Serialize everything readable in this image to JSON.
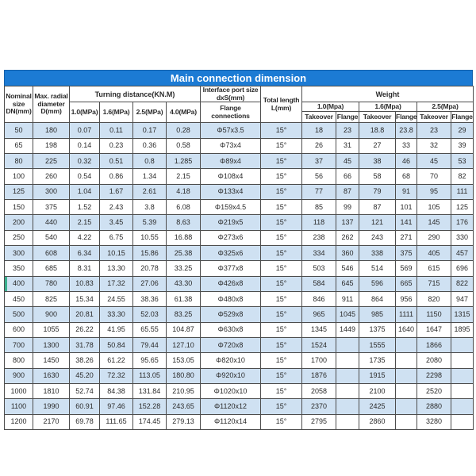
{
  "title_bar": {
    "label": "Main connection dimension"
  },
  "colors": {
    "accent": "#1c7bd4",
    "stripe": "#cfe1f2",
    "border": "#4d4d4d",
    "selection_mark": "#3cb08e",
    "title_text": "#ffffff"
  },
  "table": {
    "header": {
      "nominal_size": "Nominal size DN(mm)",
      "max_radial": "Max. radial diameter D(mm)",
      "turning_distance": "Turning distance(KN.M)",
      "turning_cols": [
        "1.0(MPa)",
        "1.6(MPa)",
        "2.5(MPa)",
        "4.0(MPa)"
      ],
      "interface_port": "Interface port size dxS(mm)",
      "flange_connections": "Flange connections",
      "total_length": "Total length L(mm)",
      "weight": "Weight",
      "weight_groups": [
        "1.0(Mpa)",
        "1.6(Mpa)",
        "2.5(Mpa)"
      ],
      "takeover": "Takeover",
      "flange": "Flange"
    },
    "highlight_row_index": 10,
    "rows": [
      [
        "50",
        "180",
        "0.07",
        "0.11",
        "0.17",
        "0.28",
        "Φ57x3.5",
        "15°",
        "18",
        "23",
        "18.8",
        "23.8",
        "23",
        "29"
      ],
      [
        "65",
        "198",
        "0.14",
        "0.23",
        "0.36",
        "0.58",
        "Φ73x4",
        "15°",
        "26",
        "31",
        "27",
        "33",
        "32",
        "39"
      ],
      [
        "80",
        "225",
        "0.32",
        "0.51",
        "0.8",
        "1.285",
        "Φ89x4",
        "15°",
        "37",
        "45",
        "38",
        "46",
        "45",
        "53"
      ],
      [
        "100",
        "260",
        "0.54",
        "0.86",
        "1.34",
        "2.15",
        "Φ108x4",
        "15°",
        "56",
        "66",
        "58",
        "68",
        "70",
        "82"
      ],
      [
        "125",
        "300",
        "1.04",
        "1.67",
        "2.61",
        "4.18",
        "Φ133x4",
        "15°",
        "77",
        "87",
        "79",
        "91",
        "95",
        "111"
      ],
      [
        "150",
        "375",
        "1.52",
        "2.43",
        "3.8",
        "6.08",
        "Φ159x4.5",
        "15°",
        "85",
        "99",
        "87",
        "101",
        "105",
        "125"
      ],
      [
        "200",
        "440",
        "2.15",
        "3.45",
        "5.39",
        "8.63",
        "Φ219x5",
        "15°",
        "118",
        "137",
        "121",
        "141",
        "145",
        "176"
      ],
      [
        "250",
        "540",
        "4.22",
        "6.75",
        "10.55",
        "16.88",
        "Φ273x6",
        "15°",
        "238",
        "262",
        "243",
        "271",
        "290",
        "330"
      ],
      [
        "300",
        "608",
        "6.34",
        "10.15",
        "15.86",
        "25.38",
        "Φ325x6",
        "15°",
        "334",
        "360",
        "338",
        "375",
        "405",
        "457"
      ],
      [
        "350",
        "685",
        "8.31",
        "13.30",
        "20.78",
        "33.25",
        "Φ377x8",
        "15°",
        "503",
        "546",
        "514",
        "569",
        "615",
        "696"
      ],
      [
        "400",
        "780",
        "10.83",
        "17.32",
        "27.06",
        "43.30",
        "Φ426x8",
        "15°",
        "584",
        "645",
        "596",
        "665",
        "715",
        "822"
      ],
      [
        "450",
        "825",
        "15.34",
        "24.55",
        "38.36",
        "61.38",
        "Φ480x8",
        "15°",
        "846",
        "911",
        "864",
        "956",
        "820",
        "947"
      ],
      [
        "500",
        "900",
        "20.81",
        "33.30",
        "52.03",
        "83.25",
        "Φ529x8",
        "15°",
        "965",
        "1045",
        "985",
        "1111",
        "1150",
        "1315"
      ],
      [
        "600",
        "1055",
        "26.22",
        "41.95",
        "65.55",
        "104.87",
        "Φ630x8",
        "15°",
        "1345",
        "1449",
        "1375",
        "1640",
        "1647",
        "1895"
      ],
      [
        "700",
        "1300",
        "31.78",
        "50.84",
        "79.44",
        "127.10",
        "Φ720x8",
        "15°",
        "1524",
        "",
        "1555",
        "",
        "1866",
        ""
      ],
      [
        "800",
        "1450",
        "38.26",
        "61.22",
        "95.65",
        "153.05",
        "Φ820x10",
        "15°",
        "1700",
        "",
        "1735",
        "",
        "2080",
        ""
      ],
      [
        "900",
        "1630",
        "45.20",
        "72.32",
        "113.05",
        "180.80",
        "Φ920x10",
        "15°",
        "1876",
        "",
        "1915",
        "",
        "2298",
        ""
      ],
      [
        "1000",
        "1810",
        "52.74",
        "84.38",
        "131.84",
        "210.95",
        "Φ1020x10",
        "15°",
        "2058",
        "",
        "2100",
        "",
        "2520",
        ""
      ],
      [
        "1100",
        "1990",
        "60.91",
        "97.46",
        "152.28",
        "243.65",
        "Φ1120x12",
        "15°",
        "2370",
        "",
        "2425",
        "",
        "2880",
        ""
      ],
      [
        "1200",
        "2170",
        "69.78",
        "111.65",
        "174.45",
        "279.13",
        "Φ1120x14",
        "15°",
        "2795",
        "",
        "2860",
        "",
        "3280",
        ""
      ]
    ]
  }
}
